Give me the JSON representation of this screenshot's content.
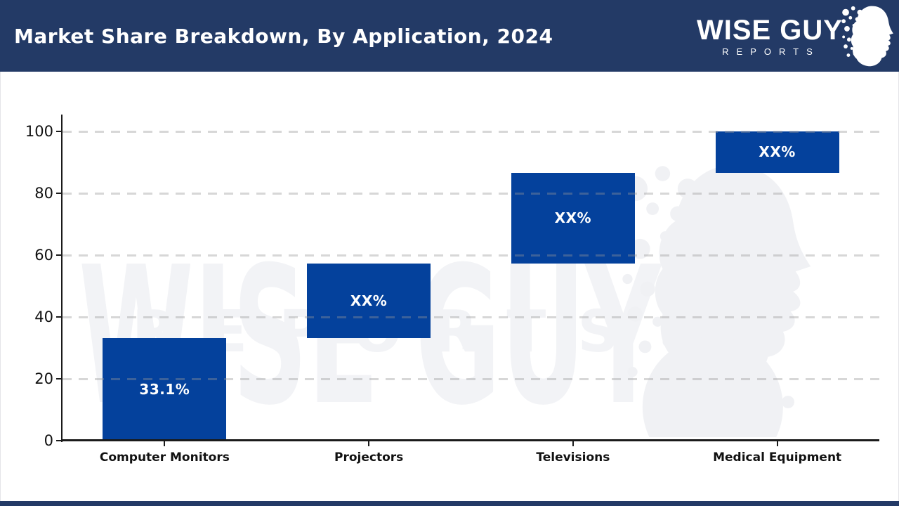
{
  "header": {
    "title": "Market Share Breakdown, By Application, 2024",
    "logo": {
      "line1": "WISE GUY",
      "line2": "REPORTS"
    }
  },
  "watermark": {
    "line1": "WISE GUY",
    "line2": "REPORTS"
  },
  "footer": {},
  "colors": {
    "header_bg": "#233a66",
    "bar": "#04419c",
    "bar_label": "#ffffff",
    "axis": "#1a1a1a",
    "grid": "rgba(150,150,150,0.38)",
    "watermark": "#f2f3f6",
    "tick_label": "#111111"
  },
  "chart_data": {
    "type": "bar",
    "subtype": "waterfall",
    "title": "Market Share Breakdown, By Application, 2024",
    "categories": [
      "Computer Monitors",
      "Projectors",
      "Televisions",
      "Medical Equipment"
    ],
    "segments": [
      {
        "category": "Computer Monitors",
        "start": 0,
        "end": 33.1,
        "label": "33.1%"
      },
      {
        "category": "Projectors",
        "start": 33.1,
        "end": 57.3,
        "label": "XX%"
      },
      {
        "category": "Televisions",
        "start": 57.3,
        "end": 86.6,
        "label": "XX%"
      },
      {
        "category": "Medical Equipment",
        "start": 86.6,
        "end": 100,
        "label": "XX%"
      }
    ],
    "ylabel": "",
    "xlabel": "",
    "yticks": [
      0,
      20,
      40,
      60,
      80,
      100
    ],
    "ylim": [
      0,
      105.5
    ],
    "grid": "horizontal dashed, drawn above bars",
    "legend": "none",
    "bar_color": "#04419c",
    "value_label_position": "center of each bar"
  }
}
